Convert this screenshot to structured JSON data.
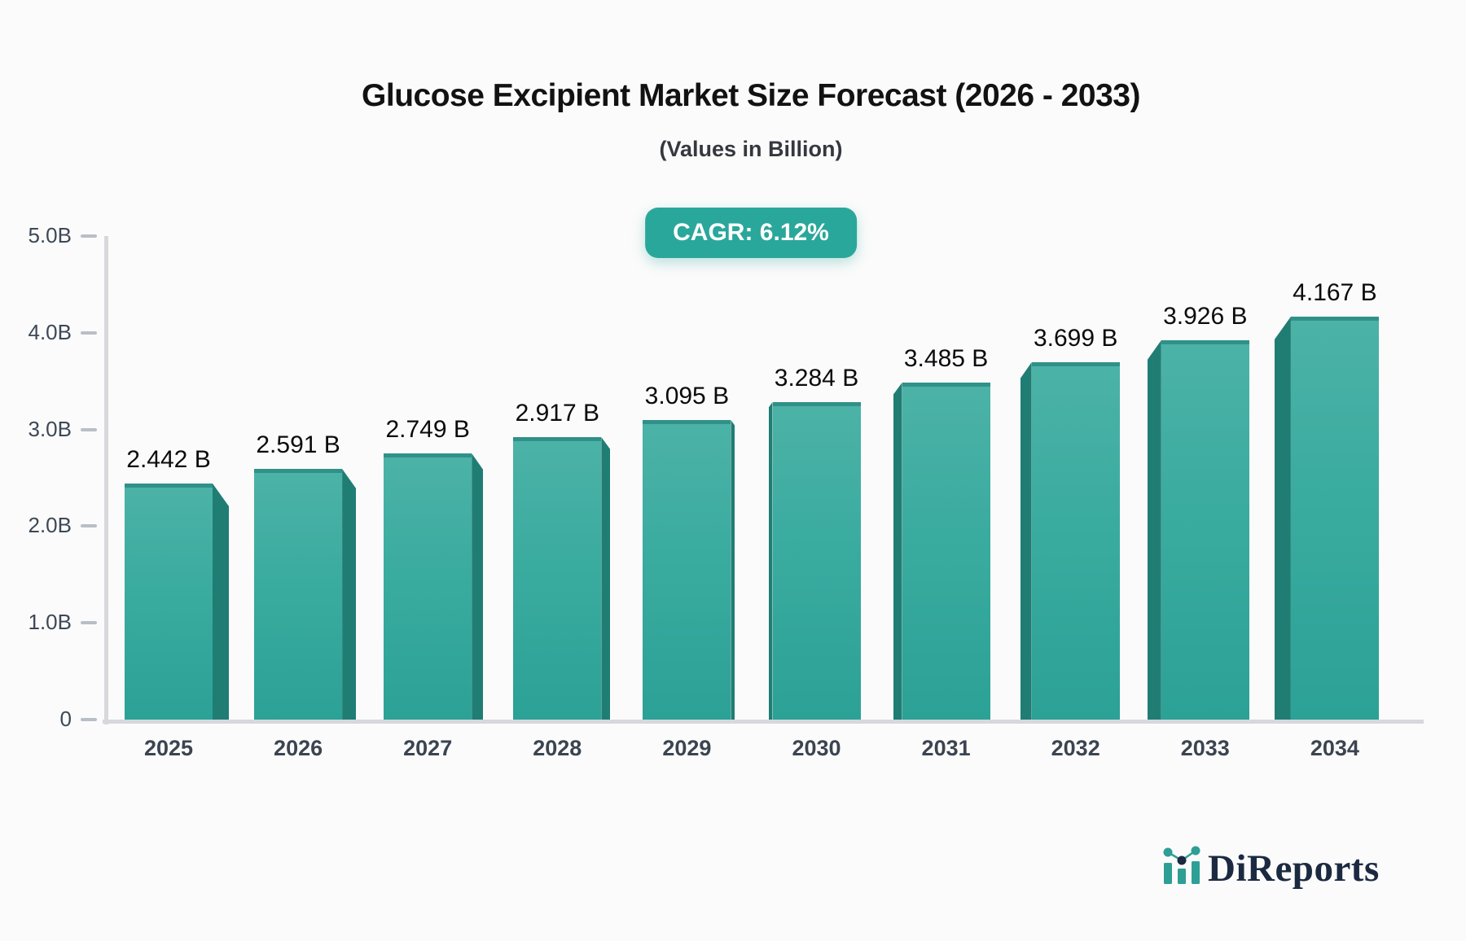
{
  "chart_data": {
    "type": "bar",
    "title": "Glucose Excipient Market Size Forecast (2026 - 2033)",
    "subtitle": "(Values in Billion)",
    "annotation": "CAGR: 6.12%",
    "categories": [
      "2025",
      "2026",
      "2027",
      "2028",
      "2029",
      "2030",
      "2031",
      "2032",
      "2033",
      "2034"
    ],
    "values": [
      2.442,
      2.591,
      2.749,
      2.917,
      3.095,
      3.284,
      3.485,
      3.699,
      3.926,
      4.167
    ],
    "value_labels": [
      "2.442 B",
      "2.591 B",
      "2.749 B",
      "2.917 B",
      "3.095 B",
      "3.284 B",
      "3.485 B",
      "3.699 B",
      "3.926 B",
      "4.167 B"
    ],
    "ytick_labels": [
      "5.0B",
      "4.0B",
      "3.0B",
      "2.0B",
      "1.0B",
      "0"
    ],
    "ytick_values": [
      5,
      4,
      3,
      2,
      1,
      0
    ],
    "ylim": [
      0,
      5
    ],
    "xlabel": "",
    "ylabel": "",
    "grid": false,
    "legend": false,
    "bar_style": "3d-extruded-teal",
    "colors": {
      "bar_front_top": "#4cb2a7",
      "bar_front_bottom": "#2ca196",
      "bar_top_edge": "#2f9188",
      "bar_side": "#1f7d74",
      "badge_background": "#2aa79b",
      "badge_text": "#ffffff",
      "axis_line": "#d7d8dc",
      "tick_text": "#3d4856",
      "value_text": "#0b0b0b",
      "title_text": "#121212"
    }
  },
  "branding": {
    "logo_text": "DiReports",
    "logo_icon": "mini-bar-chart-with-dots",
    "logo_navy": "#1b2a41",
    "logo_teal": "#2e9f95"
  }
}
